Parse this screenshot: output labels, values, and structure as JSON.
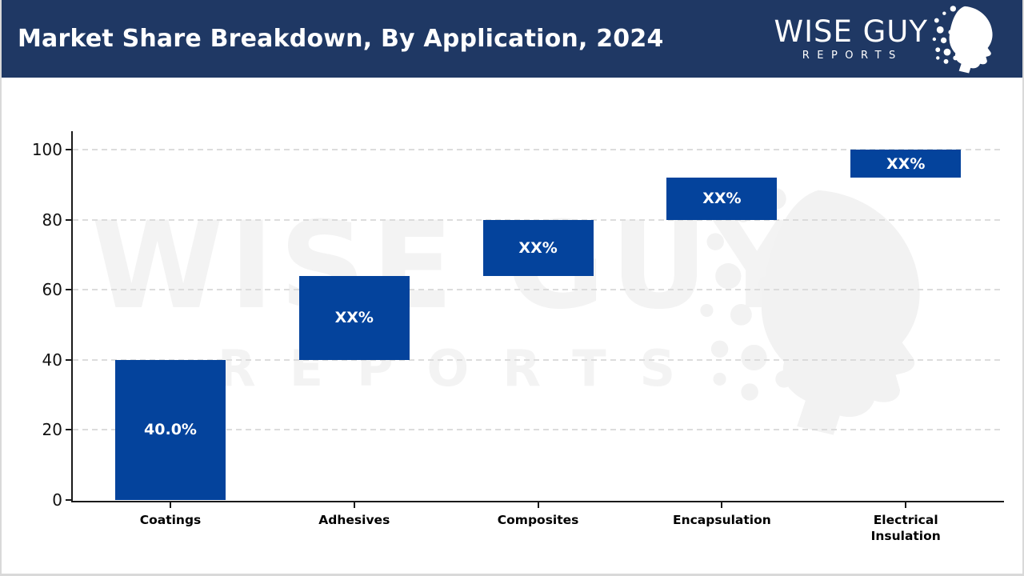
{
  "header": {
    "title": "Market Share Breakdown, By Application, 2024"
  },
  "logo": {
    "line1": "WISE GUY",
    "line2": "REPORTS",
    "icon": "dotted-head-profile-icon"
  },
  "watermark": {
    "line1": "WISE GUY",
    "line2": "REPORTS",
    "icon": "dotted-head-profile-icon"
  },
  "colors": {
    "header_bg": "#1f3864",
    "bar": "#04439c",
    "grid": "#dcdcdc",
    "axis": "#1a1a1a",
    "title_text": "#ffffff",
    "bar_label_text": "#ffffff",
    "watermark": "#f2f2f2"
  },
  "chart_data": {
    "type": "bar",
    "subtype": "waterfall",
    "title": "Market Share Breakdown, By Application, 2024",
    "categories": [
      "Coatings",
      "Adhesives",
      "Composites",
      "Encapsulation",
      "Electrical Insulation"
    ],
    "segments": [
      {
        "category": "Coatings",
        "start": 0,
        "end": 40,
        "label": "40.0%"
      },
      {
        "category": "Adhesives",
        "start": 40,
        "end": 64,
        "label": "XX%"
      },
      {
        "category": "Composites",
        "start": 64,
        "end": 80,
        "label": "XX%"
      },
      {
        "category": "Encapsulation",
        "start": 80,
        "end": 92,
        "label": "XX%"
      },
      {
        "category": "Electrical Insulation",
        "start": 92,
        "end": 100,
        "label": "XX%"
      }
    ],
    "values_shown": [
      "40.0%",
      "XX%",
      "XX%",
      "XX%",
      "XX%"
    ],
    "xlabel": "",
    "ylabel": "",
    "yticks": [
      0,
      20,
      40,
      60,
      80,
      100
    ],
    "ylim": [
      0,
      105
    ],
    "grid": "horizontal-dashed",
    "legend": "none"
  }
}
